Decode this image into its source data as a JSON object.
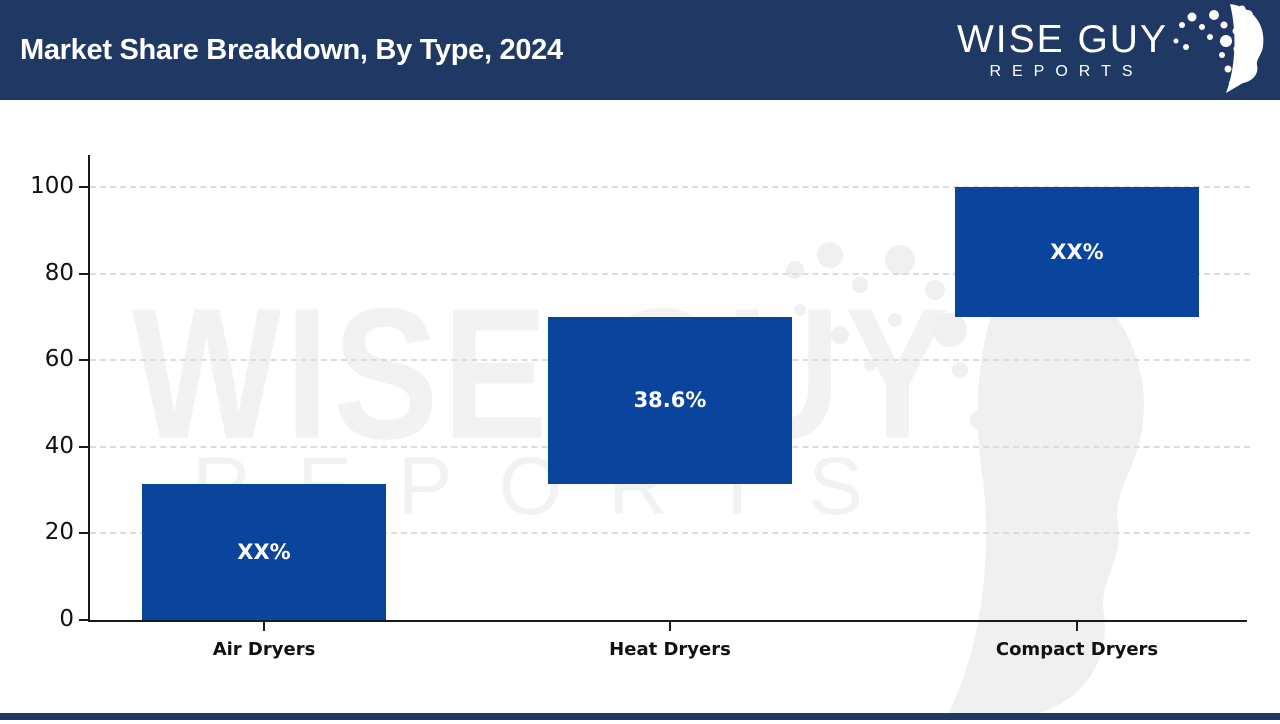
{
  "header": {
    "title": "Market Share Breakdown, By Type, 2024",
    "bg_color": "#1F3864",
    "logo": {
      "wordmark": "WISE GUY",
      "subtext": "REPORTS"
    }
  },
  "watermark": {
    "wordmark": "WISE GUY",
    "subtext": "REPORTS"
  },
  "chart_data": {
    "type": "bar",
    "variant": "floating-waterfall",
    "title": "Market Share Breakdown, By Type, 2024",
    "categories": [
      "Air Dryers",
      "Heat Dryers",
      "Compact Dryers"
    ],
    "segments": [
      {
        "category": "Air Dryers",
        "start": 0,
        "end": 31.4,
        "label": "XX%"
      },
      {
        "category": "Heat Dryers",
        "start": 31.4,
        "end": 70,
        "label": "38.6%"
      },
      {
        "category": "Compact Dryers",
        "start": 70,
        "end": 100,
        "label": "XX%"
      }
    ],
    "yticks": [
      0,
      20,
      40,
      60,
      80,
      100
    ],
    "ylim": [
      0,
      107
    ],
    "xlabel": "",
    "ylabel": "",
    "grid": "horizontal-dashed",
    "legend": "none",
    "bar_color": "#0A449D",
    "bar_label_color": "#FFFFFF",
    "axis_color": "#1a1a1a"
  }
}
